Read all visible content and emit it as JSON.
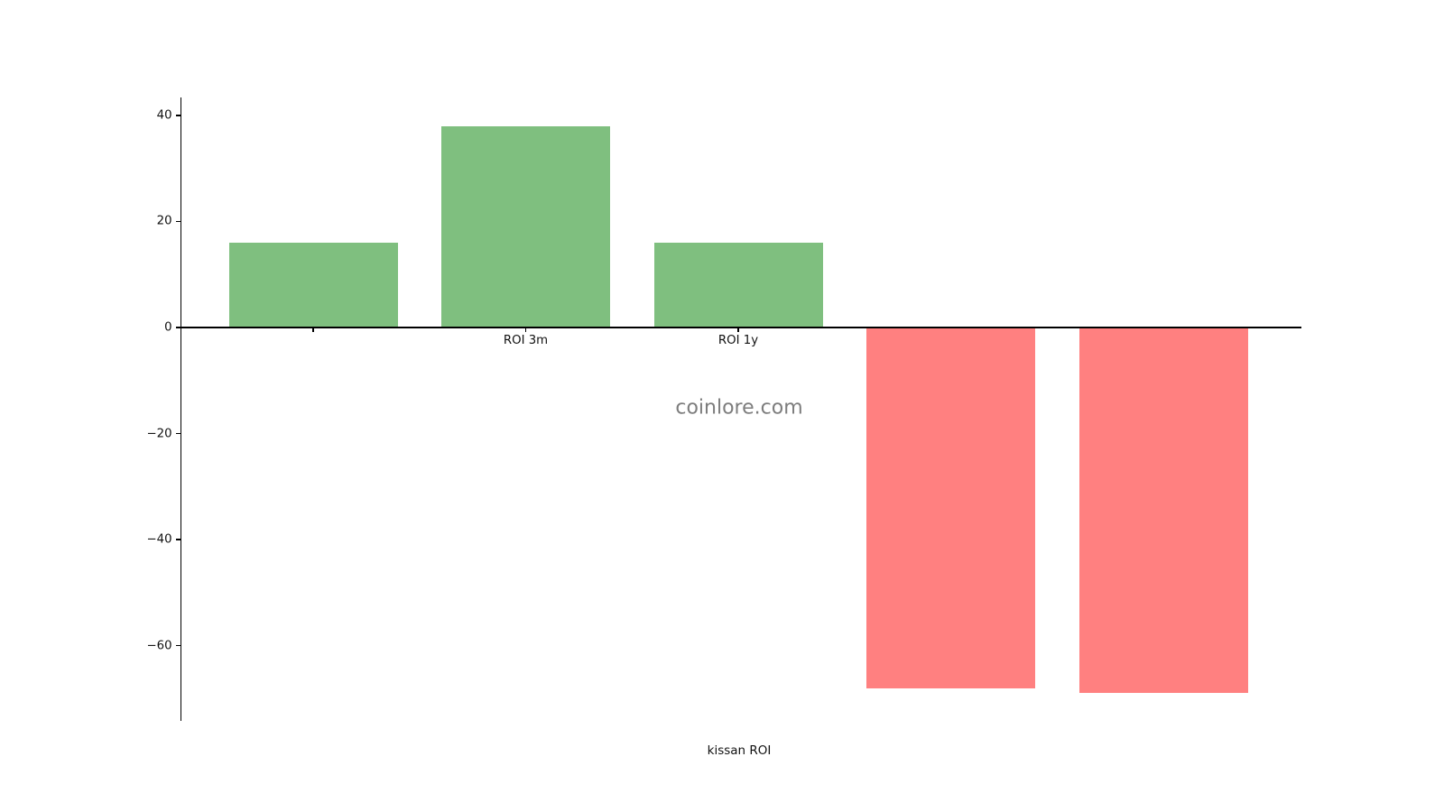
{
  "watermark": "coinlore.com",
  "chart_data": {
    "type": "bar",
    "categories": [
      "",
      "ROI 3m",
      "ROI 1y",
      "",
      ""
    ],
    "values": [
      16,
      38,
      16,
      -68,
      -69
    ],
    "bar_colors": [
      "#7fbf7f",
      "#7fbf7f",
      "#7fbf7f",
      "#ff8080",
      "#ff8080"
    ],
    "positive_color": "#7fbf7f",
    "negative_color": "#ff8080",
    "title": "",
    "xlabel": "kissan ROI",
    "ylabel": "",
    "yticks": [
      40,
      20,
      0,
      -20,
      -40,
      -60
    ],
    "ytick_labels": [
      "40",
      "20",
      "0",
      "−20",
      "−40",
      "−60"
    ],
    "ylim": [
      -74.2,
      43.4
    ],
    "grid": false,
    "legend_position": "none",
    "axis_color": "#000000",
    "text_color": "#111111",
    "watermark_color": "#7d7d7d",
    "background_color": "#ffffff"
  }
}
